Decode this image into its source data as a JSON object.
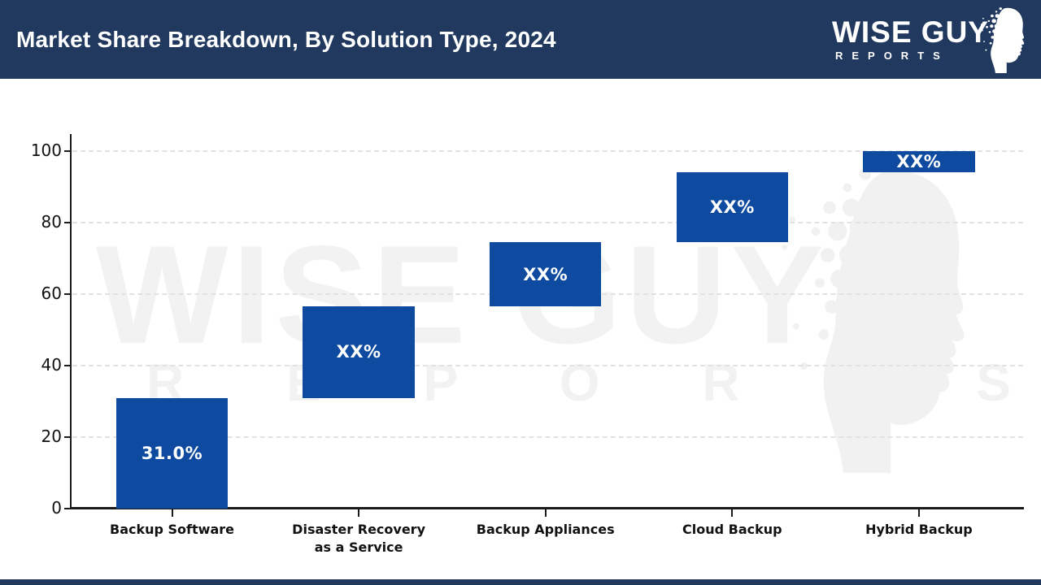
{
  "header": {
    "title": "Market Share Breakdown, By Solution Type, 2024",
    "logo": {
      "name_line": "WISE GUY",
      "reports_line": "REPORTS"
    }
  },
  "watermark": {
    "name_line": "WISE GUY",
    "reports_line": "R E P O R T S"
  },
  "chart_data": {
    "type": "bar",
    "subtype": "floating-waterfall",
    "title": "Market Share Breakdown, By Solution Type, 2024",
    "categories": [
      "Backup Software",
      "Disaster Recovery\nas a Service",
      "Backup Appliances",
      "Cloud Backup",
      "Hybrid Backup"
    ],
    "segments": [
      {
        "category": "Backup Software",
        "start": 0,
        "end": 31,
        "label": "31.0%"
      },
      {
        "category": "Disaster Recovery as a Service",
        "start": 31,
        "end": 56.5,
        "label": "XX%"
      },
      {
        "category": "Backup Appliances",
        "start": 56.5,
        "end": 74.5,
        "label": "XX%"
      },
      {
        "category": "Cloud Backup",
        "start": 74.5,
        "end": 94,
        "label": "XX%"
      },
      {
        "category": "Hybrid Backup",
        "start": 94,
        "end": 100,
        "label": "XX%"
      }
    ],
    "xlabel": "",
    "ylabel": "",
    "ylim": [
      0,
      105
    ],
    "yticks": [
      0,
      20,
      40,
      60,
      80,
      100
    ],
    "grid": "horizontal-dashed",
    "legend": "none",
    "bar_color": "#0d4aa0",
    "bar_label_color": "#ffffff"
  },
  "colors": {
    "header_bg": "#21395f",
    "footer_bg": "#21395f",
    "bar": "#0d4aa0",
    "grid": "#e2e2e2",
    "axis_text": "#111111",
    "watermark": "#f2f2f2"
  }
}
